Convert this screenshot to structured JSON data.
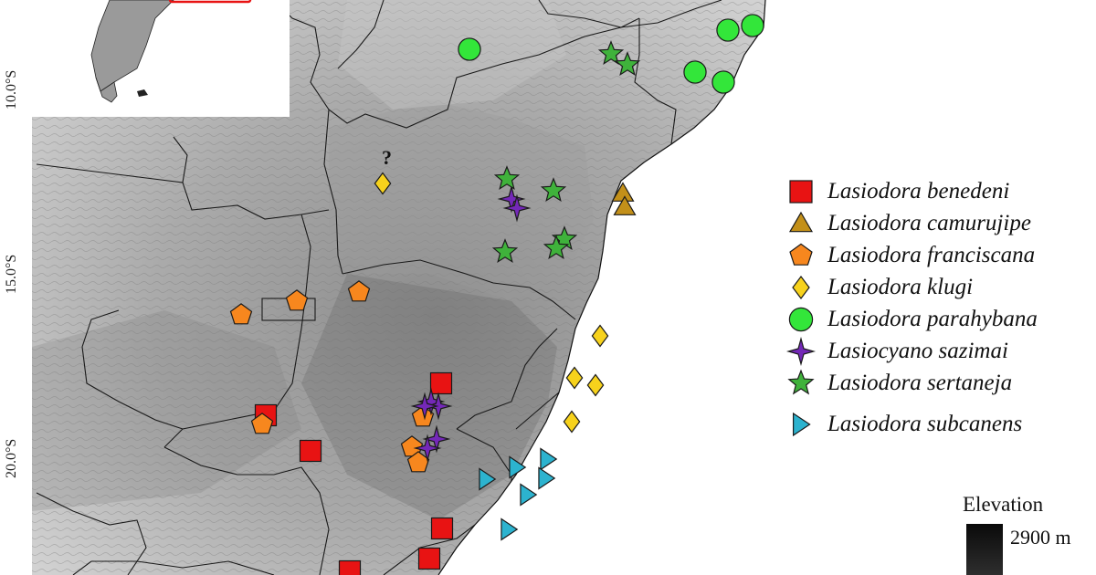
{
  "map": {
    "latitude_labels": [
      "10.0°S",
      "15.0°S",
      "20.0°S"
    ],
    "uncertain_mark": "?"
  },
  "legend": {
    "items": [
      {
        "label": "Lasiodora benedeni",
        "shape": "square",
        "color": "#e81313"
      },
      {
        "label": "Lasiodora camurujipe",
        "shape": "triangle",
        "color": "#c39019"
      },
      {
        "label": "Lasiodora franciscana",
        "shape": "pentagon",
        "color": "#f7871e"
      },
      {
        "label": "Lasiodora klugi",
        "shape": "diamond",
        "color": "#f7d21c"
      },
      {
        "label": "Lasiodora parahybana",
        "shape": "circle",
        "color": "#33e63a"
      },
      {
        "label": "Lasiocyano sazimai",
        "shape": "four-point-star",
        "color": "#7428b8"
      },
      {
        "label": "Lasiodora sertaneja",
        "shape": "star",
        "color": "#3fb23b"
      },
      {
        "label": "Lasiodora subcanens",
        "shape": "right-triangle",
        "color": "#2cb3cf"
      }
    ]
  },
  "elevation_legend": {
    "title": "Elevation",
    "max_label": "2900 m"
  }
}
